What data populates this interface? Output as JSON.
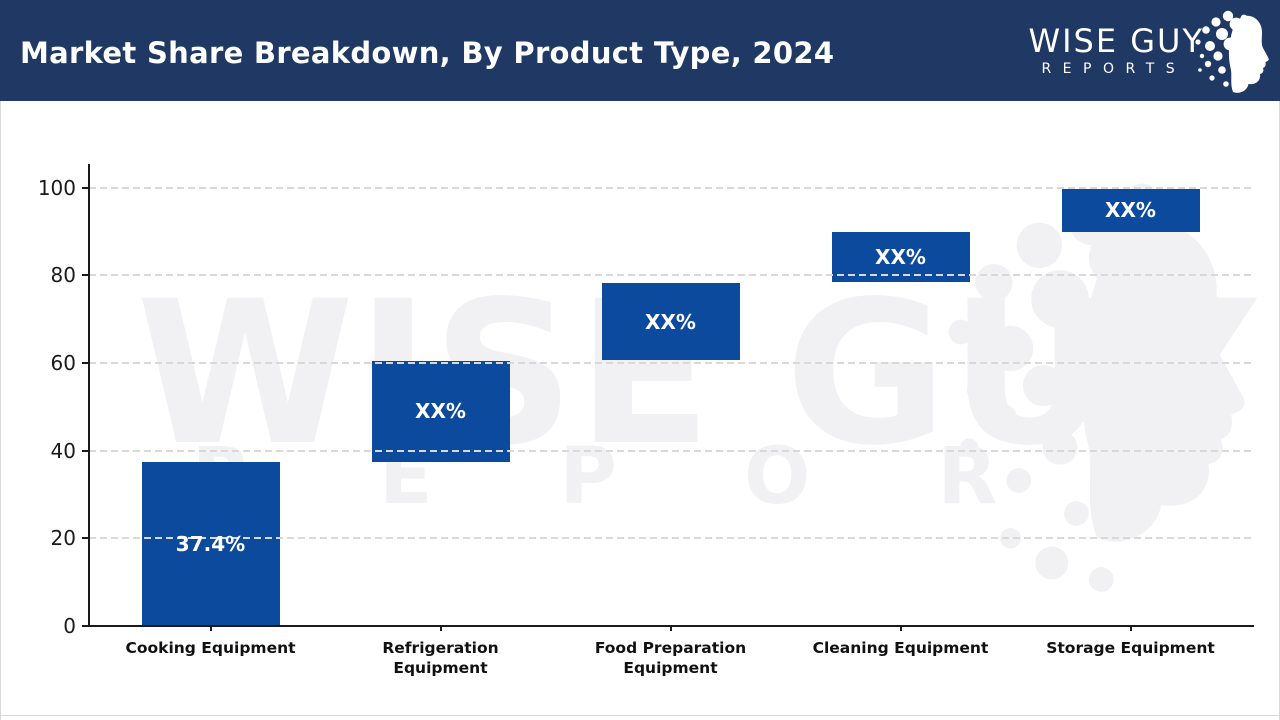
{
  "header": {
    "title": "Market Share Breakdown, By Product Type, 2024",
    "logo": {
      "line1": "WISE GUY",
      "line2": "REPORTS"
    }
  },
  "watermark": {
    "line1": "WISE GUY",
    "line2": "R E P O R T S"
  },
  "colors": {
    "header_bg": "#1f3864",
    "bar_blue": "#0c4a9e",
    "gridline": "#d9d9d9",
    "axis": "#1a1a1a",
    "bar_label_text": "#ffffff",
    "watermark": "#f1f1f4"
  },
  "chart_data": {
    "type": "bar",
    "subtype": "waterfall",
    "title": "Market Share Breakdown, By Product Type, 2024",
    "xlabel": "",
    "ylabel": "",
    "ylim": [
      0,
      105.4
    ],
    "yticks": [
      0,
      20,
      40,
      60,
      80,
      100
    ],
    "grid": "horizontal dashed",
    "legend": "none",
    "categories": [
      "Cooking Equipment",
      "Refrigeration\nEquipment",
      "Food Preparation\nEquipment",
      "Cleaning Equipment",
      "Storage Equipment"
    ],
    "segments": [
      {
        "category": "Cooking Equipment",
        "start": 0,
        "end": 37.4,
        "label": "37.4%"
      },
      {
        "category": "Refrigeration\nEquipment",
        "start": 37.4,
        "end": 60.5,
        "label": "XX%"
      },
      {
        "category": "Food Preparation\nEquipment",
        "start": 60.7,
        "end": 78.2,
        "label": "XX%"
      },
      {
        "category": "Cleaning Equipment",
        "start": 78.4,
        "end": 89.8,
        "label": "XX%"
      },
      {
        "category": "Storage Equipment",
        "start": 89.9,
        "end": 99.8,
        "label": "XX%"
      }
    ]
  }
}
